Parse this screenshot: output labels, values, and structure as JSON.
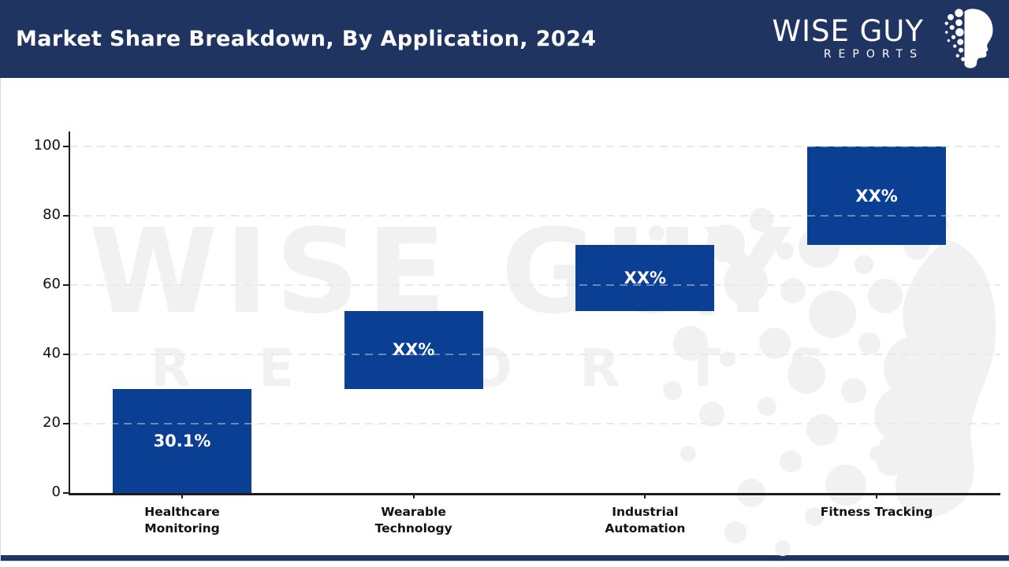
{
  "header": {
    "title": "Market Share Breakdown, By Application, 2024",
    "logo": {
      "line1": "WISE GUY",
      "line2": "REPORTS"
    }
  },
  "watermark": {
    "line1": "WISE GUY",
    "line2": "REPORTS"
  },
  "colors": {
    "header_bg": "#1f3460",
    "bar": "#0a3f94",
    "bar_label": "#ffffff",
    "grid": "#dcdcdc",
    "axis": "#1c1c1c",
    "watermark": "#f1f1f1"
  },
  "chart_data": {
    "type": "bar",
    "subtype": "waterfall",
    "title": "Market Share Breakdown, By Application, 2024",
    "categories": [
      "Healthcare Monitoring",
      "Wearable Technology",
      "Industrial Automation",
      "Fitness Tracking"
    ],
    "category_lines": [
      [
        "Healthcare",
        "Monitoring"
      ],
      [
        "Wearable",
        "Technology"
      ],
      [
        "Industrial",
        "Automation"
      ],
      [
        "Fitness Tracking"
      ]
    ],
    "segments": [
      {
        "start": 0,
        "end": 30.1
      },
      {
        "start": 30.1,
        "end": 52.6
      },
      {
        "start": 52.6,
        "end": 71.5
      },
      {
        "start": 71.5,
        "end": 100
      }
    ],
    "values": [
      30.1,
      22.5,
      18.9,
      28.5
    ],
    "bar_labels": [
      "30.1%",
      "XX%",
      "XX%",
      "XX%"
    ],
    "xlabel": "",
    "ylabel": "",
    "ylim": [
      0,
      100
    ],
    "yticks": [
      0,
      20,
      40,
      60,
      80,
      100
    ],
    "grid": "horizontal-dashed",
    "legend": "none"
  }
}
